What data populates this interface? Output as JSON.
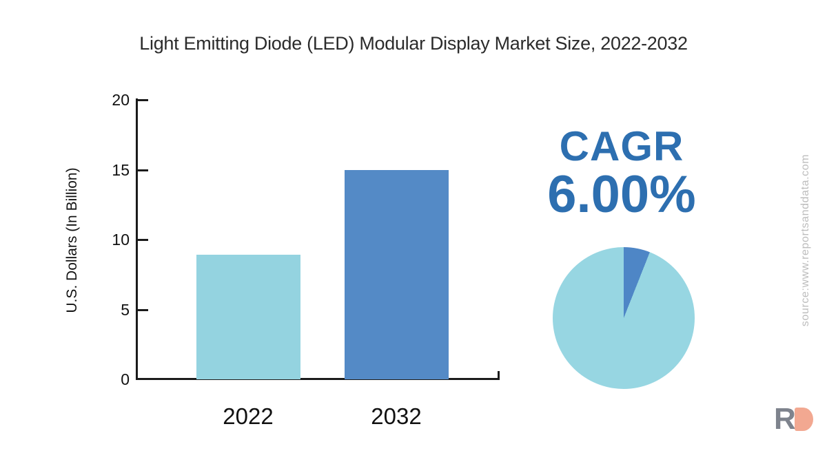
{
  "title": "Light Emitting Diode (LED) Modular Display Market Size, 2022-2032",
  "source_label": "source:www.reportsanddata.com",
  "cagr": {
    "label": "CAGR",
    "value": "6.00%"
  },
  "logo": {
    "letter": "R",
    "d_shape": "d-glyph"
  },
  "colors": {
    "bar_2022": "#94d3e0",
    "bar_2032": "#548ac6",
    "pie_main": "#97d6e2",
    "pie_slice": "#4e86c6",
    "cagr_text": "#2d6fb0",
    "axis": "#1a1a1a",
    "source_text": "#bdbdbd",
    "logo_r": "#7e838d",
    "logo_d": "#f2a891"
  },
  "chart_data": [
    {
      "type": "bar",
      "title": "Light Emitting Diode (LED) Modular Display Market Size, 2022-2032",
      "categories": [
        "2022",
        "2032"
      ],
      "values": [
        8.9,
        15
      ],
      "xlabel": "",
      "ylabel": "U.S. Dollars (In Billion)",
      "ylim": [
        0,
        20
      ],
      "yticks": [
        0,
        5,
        10,
        15,
        20
      ],
      "bar_colors": [
        "#94d3e0",
        "#548ac6"
      ],
      "grid": false,
      "legend": "none"
    },
    {
      "type": "pie",
      "labels": [
        "CAGR slice",
        "remainder"
      ],
      "values": [
        6,
        94
      ],
      "colors": [
        "#4e86c6",
        "#97d6e2"
      ],
      "start_angle_deg": 0,
      "direction": "clockwise",
      "annotation": "CAGR 6.00%"
    }
  ]
}
